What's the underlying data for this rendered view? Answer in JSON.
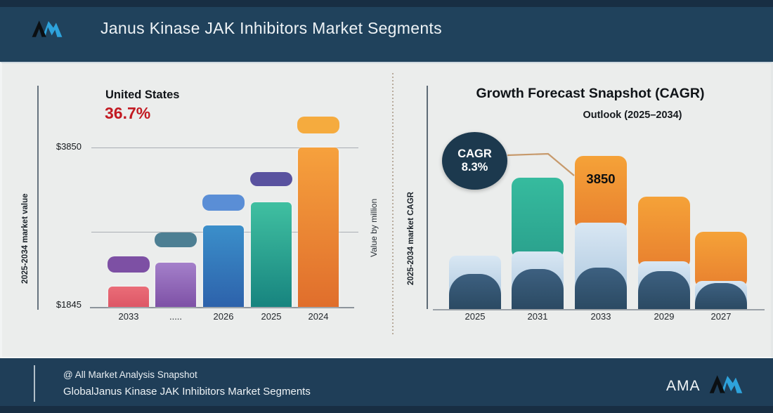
{
  "header": {
    "title": "Janus Kinase JAK Inhibitors Market Segments"
  },
  "footer": {
    "line1": "@ All Market Analysis Snapshot",
    "line2": "GlobalJanus Kinase JAK Inhibitors Market Segments",
    "brand": "AMA"
  },
  "colors": {
    "header_bg": "#20425c",
    "header_stripe": "#182e43",
    "footer_bg": "#1f3e58",
    "content_bg": "#ebedec",
    "accent_red": "#c21a22",
    "badge_navy": "#1c394e",
    "connector": "#c79a6c",
    "logo_blue": "#2ea3dc",
    "logo_black": "#0b0f12"
  },
  "chart_data": [
    {
      "type": "bar",
      "panel": "left",
      "region_label": "United States",
      "region_value": "36.7%",
      "ylabel_left": "2025-2034 market value",
      "ylabel_right": "Value by million",
      "yticks": [
        {
          "label": "$3850",
          "value": 3850
        },
        {
          "label": "$1845",
          "value": 1845
        }
      ],
      "ylim": [
        1845,
        4350
      ],
      "gridline_values": [
        3850,
        2790
      ],
      "categories": [
        "2033",
        ".....",
        "2026",
        "2025",
        "2024"
      ],
      "values": [
        2100,
        2400,
        2870,
        3160,
        3850
      ],
      "floating_caps": [
        [
          2280,
          2480
        ],
        [
          2595,
          2780
        ],
        [
          3055,
          3260
        ],
        [
          3365,
          3540
        ],
        [
          4025,
          4240
        ]
      ],
      "bar_gradients": [
        [
          "#ea6d78",
          "#dd5766"
        ],
        [
          "#a480ca",
          "#7e51a6"
        ],
        [
          "#3b8fca",
          "#2d62ab"
        ],
        [
          "#40c0a1",
          "#17847f"
        ],
        [
          "#f6a13d",
          "#e06e2c"
        ]
      ],
      "cap_colors": [
        "#7d50a4",
        "#4d7f93",
        "#5a8ed6",
        "#59529f",
        "#f5ab3e"
      ],
      "note": "bar values in $ million, estimated from $1845/$3850 axis ticks"
    },
    {
      "type": "stacked-bar",
      "panel": "right",
      "title": "Growth Forecast Snapshot (CAGR)",
      "subtitle": "Outlook (2025–2034)",
      "ylabel_left": "2025-2034 market CAGR",
      "categories": [
        "2025",
        "2031",
        "2033",
        "2029",
        "2027"
      ],
      "series": [
        {
          "name": "base",
          "values": [
            38,
            45,
            47,
            42,
            25
          ]
        },
        {
          "name": "middle",
          "values": [
            38,
            37,
            76,
            26,
            15
          ]
        },
        {
          "name": "top",
          "values": [
            0,
            105,
            95,
            92,
            70
          ]
        }
      ],
      "top_segment_styles": [
        null,
        "teal",
        "orange",
        "orange",
        "orange"
      ],
      "segment_gradients": {
        "base": [
          "#3d6080",
          "#2b4a63"
        ],
        "middle": [
          "#d9e7f3",
          "#a6c3dc"
        ],
        "teal": [
          "#36bb9e",
          "#2aa18d"
        ],
        "orange": [
          "#f5a238",
          "#e8802f"
        ]
      },
      "unit": "relative height units (no y-axis scale shown)",
      "badge": {
        "line1": "CAGR",
        "line2": "8.3%"
      },
      "bar_annotation": {
        "text": "3850",
        "category": "2033"
      }
    }
  ]
}
